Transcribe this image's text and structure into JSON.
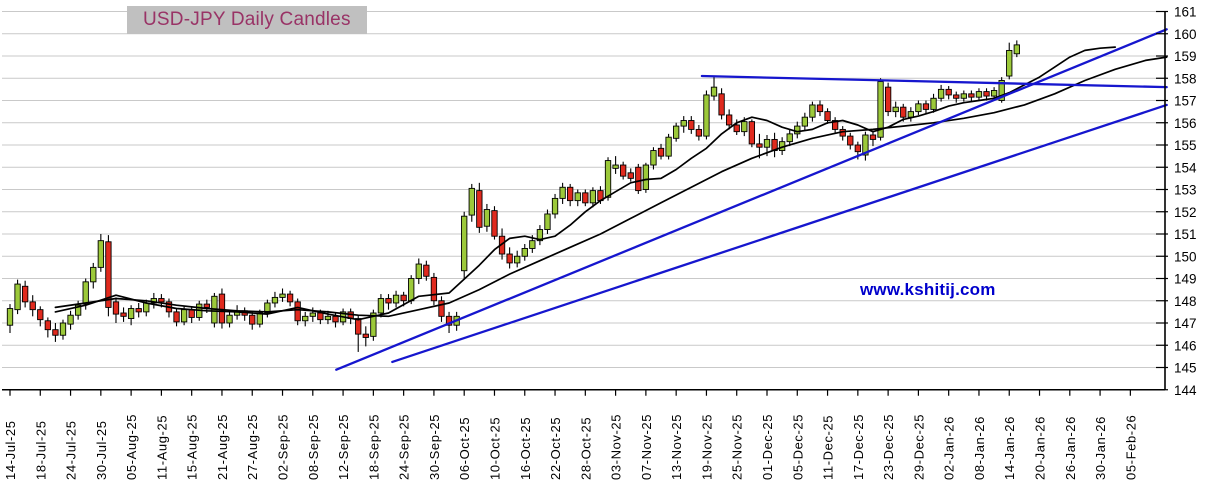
{
  "title": "USD-JPY Daily Candles",
  "watermark": "www.kshitij.com",
  "colors": {
    "up_candle": "#9CC93A",
    "down_candle": "#E02A1E",
    "candle_outline": "#000000",
    "moving_average": "#000000",
    "trendline": "#1616CE",
    "grid": "#C9C9C9",
    "axis": "#000000",
    "title_color": "#993366",
    "title_bg": "#C0C0C0",
    "watermark_color": "#0000CC",
    "background": "#FFFFFF"
  },
  "chart_data": {
    "type": "candlestick",
    "title": "USD-JPY Daily Candles",
    "start_date": "14-Jul-25",
    "y_axis": {
      "min": 144,
      "max": 161,
      "step": 1,
      "side": "right",
      "ticks": [
        144,
        145,
        146,
        147,
        148,
        149,
        150,
        151,
        152,
        153,
        154,
        155,
        156,
        157,
        158,
        159,
        160,
        161
      ]
    },
    "x_axis": {
      "label_every_n_candles": 4,
      "total_slots": 149,
      "labels": [
        "14-Jul-25",
        "18-Jul-25",
        "24-Jul-25",
        "30-Jul-25",
        "05-Aug-25",
        "11-Aug-25",
        "15-Aug-25",
        "21-Aug-25",
        "27-Aug-25",
        "02-Sep-25",
        "08-Sep-25",
        "12-Sep-25",
        "18-Sep-25",
        "24-Sep-25",
        "30-Sep-25",
        "06-Oct-25",
        "10-Oct-25",
        "16-Oct-25",
        "22-Oct-25",
        "28-Oct-25",
        "03-Nov-25",
        "07-Nov-25",
        "13-Nov-25",
        "19-Nov-25",
        "25-Nov-25",
        "01-Dec-25",
        "05-Dec-25",
        "11-Dec-25",
        "17-Dec-25",
        "23-Dec-25",
        "29-Dec-25",
        "02-Jan-26",
        "08-Jan-26",
        "14-Jan-26",
        "20-Jan-26",
        "26-Jan-26",
        "30-Jan-26",
        "05-Feb-26"
      ]
    },
    "candles": [
      [
        146.9,
        147.85,
        146.55,
        147.65
      ],
      [
        147.6,
        148.95,
        147.4,
        148.75
      ],
      [
        148.65,
        148.9,
        147.7,
        147.95
      ],
      [
        147.95,
        148.25,
        147.3,
        147.6
      ],
      [
        147.6,
        147.75,
        146.85,
        147.15
      ],
      [
        147.1,
        147.25,
        146.35,
        146.7
      ],
      [
        146.7,
        147.0,
        146.15,
        146.45
      ],
      [
        146.45,
        147.15,
        146.25,
        147.0
      ],
      [
        146.95,
        147.55,
        146.7,
        147.35
      ],
      [
        147.35,
        148.0,
        147.15,
        147.8
      ],
      [
        147.85,
        149.0,
        147.6,
        148.85
      ],
      [
        148.85,
        149.7,
        148.55,
        149.5
      ],
      [
        149.5,
        151.0,
        149.3,
        150.7
      ],
      [
        150.65,
        150.95,
        147.3,
        147.7
      ],
      [
        147.95,
        148.15,
        147.0,
        147.4
      ],
      [
        147.45,
        147.7,
        147.05,
        147.3
      ],
      [
        147.2,
        147.8,
        146.9,
        147.65
      ],
      [
        147.65,
        147.9,
        147.25,
        147.5
      ],
      [
        147.5,
        148.05,
        147.3,
        147.9
      ],
      [
        147.9,
        148.35,
        147.65,
        148.1
      ],
      [
        148.1,
        148.3,
        147.7,
        147.95
      ],
      [
        147.95,
        148.1,
        147.25,
        147.5
      ],
      [
        147.5,
        147.65,
        146.85,
        147.05
      ],
      [
        147.05,
        147.75,
        146.9,
        147.6
      ],
      [
        147.6,
        147.75,
        147.0,
        147.25
      ],
      [
        147.25,
        148.0,
        147.1,
        147.85
      ],
      [
        147.85,
        148.05,
        147.45,
        147.7
      ],
      [
        147.0,
        148.35,
        146.8,
        148.2
      ],
      [
        148.3,
        148.55,
        146.75,
        147.0
      ],
      [
        147.0,
        147.55,
        146.8,
        147.35
      ],
      [
        147.35,
        147.8,
        147.15,
        147.55
      ],
      [
        147.55,
        147.7,
        147.1,
        147.35
      ],
      [
        147.35,
        147.5,
        146.7,
        146.95
      ],
      [
        146.95,
        147.6,
        146.8,
        147.45
      ],
      [
        147.45,
        148.05,
        147.25,
        147.9
      ],
      [
        147.9,
        148.4,
        147.7,
        148.15
      ],
      [
        148.15,
        148.55,
        147.95,
        148.3
      ],
      [
        148.3,
        148.45,
        147.75,
        147.95
      ],
      [
        147.95,
        148.1,
        146.9,
        147.1
      ],
      [
        147.1,
        147.5,
        146.85,
        147.3
      ],
      [
        147.3,
        147.7,
        147.05,
        147.45
      ],
      [
        147.45,
        147.6,
        146.95,
        147.15
      ],
      [
        147.15,
        147.55,
        146.95,
        147.3
      ],
      [
        147.3,
        147.45,
        146.8,
        147.05
      ],
      [
        147.05,
        147.65,
        146.9,
        147.5
      ],
      [
        147.5,
        147.65,
        146.95,
        147.2
      ],
      [
        147.2,
        147.35,
        145.7,
        146.5
      ],
      [
        146.5,
        146.85,
        145.95,
        146.35
      ],
      [
        146.4,
        147.6,
        146.2,
        147.45
      ],
      [
        147.45,
        148.3,
        147.25,
        148.1
      ],
      [
        148.1,
        148.3,
        147.6,
        147.9
      ],
      [
        147.9,
        148.45,
        147.7,
        148.25
      ],
      [
        148.25,
        148.4,
        147.75,
        148.0
      ],
      [
        148.0,
        149.15,
        147.85,
        149.0
      ],
      [
        149.0,
        149.9,
        148.75,
        149.65
      ],
      [
        149.6,
        149.8,
        148.9,
        149.1
      ],
      [
        149.05,
        149.25,
        147.8,
        148.0
      ],
      [
        148.0,
        148.2,
        147.05,
        147.3
      ],
      [
        147.3,
        147.5,
        146.55,
        146.9
      ],
      [
        146.9,
        147.5,
        146.65,
        147.3
      ],
      [
        149.35,
        152.0,
        148.95,
        151.8
      ],
      [
        151.85,
        153.25,
        151.55,
        153.05
      ],
      [
        152.95,
        153.3,
        151.05,
        151.3
      ],
      [
        151.35,
        152.35,
        151.1,
        152.1
      ],
      [
        152.05,
        152.25,
        150.75,
        150.9
      ],
      [
        150.9,
        151.25,
        149.85,
        150.1
      ],
      [
        150.1,
        150.4,
        149.45,
        149.7
      ],
      [
        149.7,
        150.25,
        149.5,
        150.0
      ],
      [
        150.0,
        150.55,
        149.8,
        150.35
      ],
      [
        150.35,
        150.95,
        150.15,
        150.7
      ],
      [
        150.7,
        151.4,
        150.5,
        151.2
      ],
      [
        151.2,
        152.1,
        151.0,
        151.9
      ],
      [
        151.9,
        152.8,
        151.7,
        152.6
      ],
      [
        152.6,
        153.3,
        152.35,
        153.1
      ],
      [
        153.1,
        153.25,
        152.25,
        152.5
      ],
      [
        152.5,
        153.0,
        152.25,
        152.85
      ],
      [
        152.85,
        153.0,
        152.25,
        152.4
      ],
      [
        152.4,
        153.1,
        152.2,
        152.95
      ],
      [
        152.95,
        153.15,
        152.35,
        152.5
      ],
      [
        152.65,
        154.45,
        152.5,
        154.3
      ],
      [
        153.95,
        154.5,
        153.7,
        154.1
      ],
      [
        154.1,
        154.25,
        153.45,
        153.6
      ],
      [
        153.75,
        153.95,
        153.35,
        153.5
      ],
      [
        154.0,
        154.15,
        152.8,
        152.95
      ],
      [
        153.0,
        154.2,
        152.85,
        154.1
      ],
      [
        154.1,
        154.9,
        153.9,
        154.75
      ],
      [
        154.85,
        155.05,
        154.35,
        154.5
      ],
      [
        154.5,
        155.5,
        154.35,
        155.35
      ],
      [
        155.3,
        156.0,
        155.15,
        155.85
      ],
      [
        155.85,
        156.3,
        155.55,
        156.1
      ],
      [
        156.1,
        156.3,
        155.5,
        155.7
      ],
      [
        155.7,
        155.9,
        155.2,
        155.4
      ],
      [
        155.4,
        157.45,
        155.25,
        157.25
      ],
      [
        157.2,
        158.05,
        157.0,
        157.6
      ],
      [
        157.3,
        157.55,
        156.15,
        156.35
      ],
      [
        156.35,
        156.6,
        155.7,
        155.9
      ],
      [
        155.9,
        156.15,
        155.45,
        155.6
      ],
      [
        155.6,
        156.25,
        155.4,
        156.05
      ],
      [
        156.05,
        156.15,
        154.9,
        155.05
      ],
      [
        155.05,
        155.5,
        154.4,
        154.9
      ],
      [
        154.9,
        155.45,
        154.5,
        155.25
      ],
      [
        155.25,
        155.55,
        154.45,
        154.75
      ],
      [
        154.75,
        155.35,
        154.55,
        155.15
      ],
      [
        155.15,
        155.7,
        154.95,
        155.5
      ],
      [
        155.5,
        156.05,
        155.3,
        155.85
      ],
      [
        155.85,
        156.45,
        155.65,
        156.25
      ],
      [
        156.25,
        156.95,
        156.05,
        156.8
      ],
      [
        156.8,
        157.0,
        156.3,
        156.5
      ],
      [
        156.5,
        156.65,
        155.95,
        156.1
      ],
      [
        156.1,
        156.25,
        155.55,
        155.7
      ],
      [
        155.7,
        155.85,
        155.2,
        155.4
      ],
      [
        155.4,
        155.55,
        154.8,
        155.0
      ],
      [
        155.0,
        155.15,
        154.35,
        154.7
      ],
      [
        154.55,
        155.6,
        154.3,
        155.45
      ],
      [
        155.45,
        155.6,
        154.95,
        155.25
      ],
      [
        155.35,
        158.0,
        155.2,
        157.85
      ],
      [
        157.6,
        157.8,
        156.3,
        156.5
      ],
      [
        156.5,
        156.95,
        156.25,
        156.7
      ],
      [
        156.7,
        156.85,
        156.05,
        156.25
      ],
      [
        156.25,
        156.7,
        156.05,
        156.5
      ],
      [
        156.5,
        157.0,
        156.35,
        156.85
      ],
      [
        156.85,
        157.0,
        156.4,
        156.6
      ],
      [
        156.6,
        157.3,
        156.45,
        157.1
      ],
      [
        157.1,
        157.7,
        156.95,
        157.5
      ],
      [
        157.5,
        157.65,
        157.05,
        157.25
      ],
      [
        157.25,
        157.4,
        156.9,
        157.1
      ],
      [
        157.1,
        157.45,
        156.95,
        157.3
      ],
      [
        157.3,
        157.45,
        156.95,
        157.15
      ],
      [
        157.15,
        157.55,
        157.0,
        157.4
      ],
      [
        157.4,
        157.55,
        157.0,
        157.2
      ],
      [
        157.2,
        157.6,
        157.05,
        157.45
      ],
      [
        157.0,
        158.05,
        156.9,
        157.9
      ],
      [
        158.1,
        159.6,
        157.95,
        159.25
      ],
      [
        159.1,
        159.7,
        158.95,
        159.5
      ]
    ],
    "moving_averages": [
      {
        "name": "ma-short",
        "points": [
          [
            6,
            147.5
          ],
          [
            10,
            147.8
          ],
          [
            14,
            148.25
          ],
          [
            18,
            147.9
          ],
          [
            22,
            147.65
          ],
          [
            26,
            147.55
          ],
          [
            30,
            147.5
          ],
          [
            34,
            147.4
          ],
          [
            38,
            147.7
          ],
          [
            42,
            147.4
          ],
          [
            46,
            147.15
          ],
          [
            50,
            147.45
          ],
          [
            54,
            148.2
          ],
          [
            58,
            148.35
          ],
          [
            62,
            149.6
          ],
          [
            64,
            150.3
          ],
          [
            66,
            150.8
          ],
          [
            68,
            150.9
          ],
          [
            70,
            150.75
          ],
          [
            72,
            150.9
          ],
          [
            74,
            151.4
          ],
          [
            76,
            152.0
          ],
          [
            78,
            152.5
          ],
          [
            80,
            152.9
          ],
          [
            82,
            153.3
          ],
          [
            84,
            153.45
          ],
          [
            86,
            153.5
          ],
          [
            88,
            153.9
          ],
          [
            90,
            154.4
          ],
          [
            92,
            154.85
          ],
          [
            94,
            155.5
          ],
          [
            96,
            156.0
          ],
          [
            98,
            156.25
          ],
          [
            100,
            156.1
          ],
          [
            102,
            155.8
          ],
          [
            104,
            155.6
          ],
          [
            106,
            155.7
          ],
          [
            108,
            156.0
          ],
          [
            110,
            156.1
          ],
          [
            112,
            155.9
          ],
          [
            114,
            155.6
          ],
          [
            116,
            155.8
          ],
          [
            118,
            156.15
          ],
          [
            120,
            156.3
          ],
          [
            122,
            156.5
          ],
          [
            124,
            156.75
          ],
          [
            126,
            156.9
          ],
          [
            128,
            157.0
          ],
          [
            130,
            157.1
          ],
          [
            132,
            157.35
          ],
          [
            134,
            157.7
          ],
          [
            136,
            158.05
          ],
          [
            138,
            158.5
          ],
          [
            140,
            158.95
          ],
          [
            142,
            159.25
          ],
          [
            144,
            159.35
          ],
          [
            146,
            159.4
          ]
        ]
      },
      {
        "name": "ma-long",
        "points": [
          [
            6,
            147.7
          ],
          [
            10,
            147.9
          ],
          [
            14,
            148.1
          ],
          [
            18,
            148.0
          ],
          [
            22,
            147.8
          ],
          [
            26,
            147.65
          ],
          [
            30,
            147.55
          ],
          [
            34,
            147.5
          ],
          [
            38,
            147.6
          ],
          [
            42,
            147.5
          ],
          [
            46,
            147.35
          ],
          [
            50,
            147.3
          ],
          [
            54,
            147.6
          ],
          [
            58,
            147.9
          ],
          [
            62,
            148.5
          ],
          [
            66,
            149.2
          ],
          [
            70,
            149.8
          ],
          [
            74,
            150.4
          ],
          [
            78,
            151.0
          ],
          [
            82,
            151.7
          ],
          [
            86,
            152.4
          ],
          [
            90,
            153.1
          ],
          [
            94,
            153.8
          ],
          [
            98,
            154.4
          ],
          [
            102,
            154.9
          ],
          [
            106,
            155.3
          ],
          [
            110,
            155.6
          ],
          [
            114,
            155.7
          ],
          [
            118,
            155.85
          ],
          [
            122,
            156.0
          ],
          [
            126,
            156.2
          ],
          [
            130,
            156.45
          ],
          [
            134,
            156.8
          ],
          [
            138,
            157.3
          ],
          [
            142,
            157.9
          ],
          [
            146,
            158.4
          ],
          [
            150,
            158.8
          ],
          [
            152.8,
            158.95
          ]
        ]
      }
    ],
    "trendlines": [
      {
        "name": "ascending-support-1",
        "from": [
          43.1,
          144.9
        ],
        "to": [
          152.8,
          160.2
        ]
      },
      {
        "name": "ascending-support-2",
        "from": [
          50.5,
          145.25
        ],
        "to": [
          152.8,
          156.8
        ]
      },
      {
        "name": "horizontal-resistance",
        "from": [
          91.4,
          158.1
        ],
        "to": [
          152.8,
          157.6
        ]
      }
    ]
  }
}
